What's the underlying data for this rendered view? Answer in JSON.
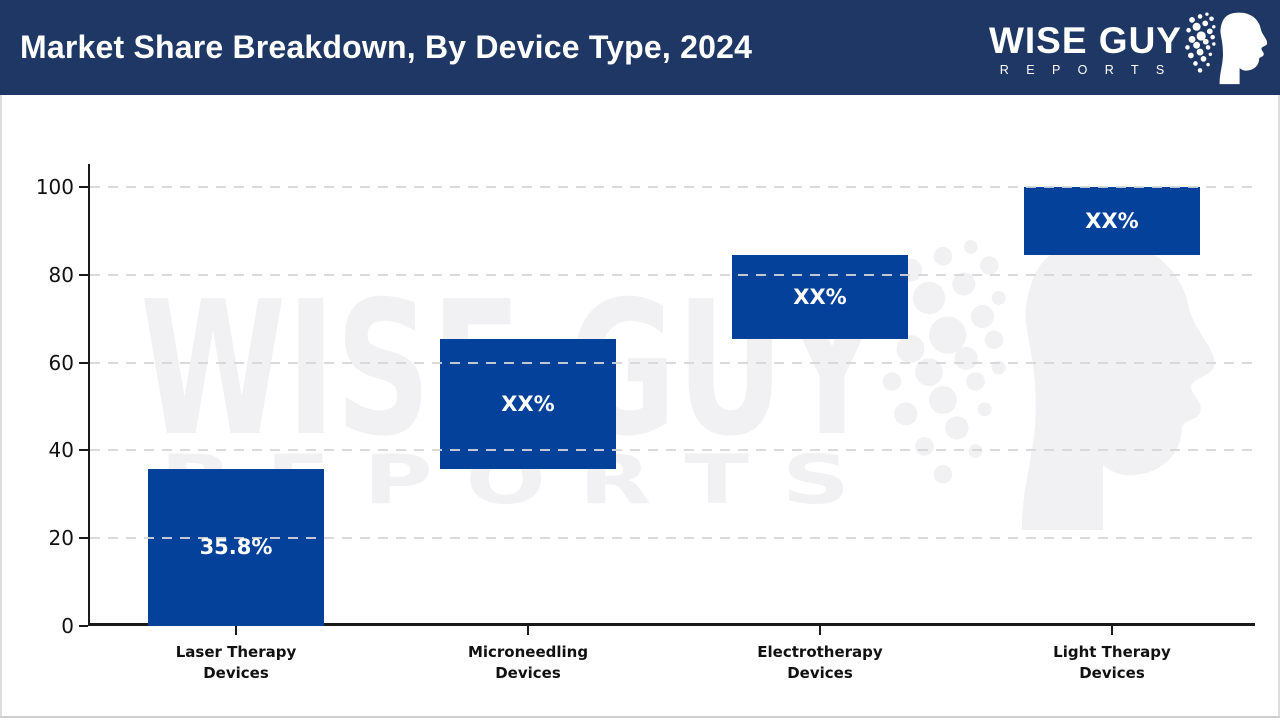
{
  "page": {
    "background": "#ffffff",
    "frame_color": "#cfcfcf"
  },
  "header": {
    "title": "Market Share Breakdown, By Device Type, 2024",
    "bg_color": "#1f3764",
    "logo": {
      "line1": "WISE GUY",
      "line2": "R E P O R T S",
      "face_icon": "face-profile-dots-icon",
      "color": "#ffffff"
    }
  },
  "watermark": {
    "line1": "WISE GUY",
    "line2": "R E P O R T S",
    "color": "#f1f1f3"
  },
  "chart_data": {
    "type": "bar",
    "subtype": "waterfall-floating-bars",
    "title": "Market Share Breakdown, By Device Type, 2024",
    "categories": [
      "Laser Therapy\nDevices",
      "Microneedling\nDevices",
      "Electrotherapy\nDevices",
      "Light Therapy\nDevices"
    ],
    "segments": [
      {
        "category": "Laser Therapy Devices",
        "start": 0,
        "end": 35.8,
        "label": "35.8%"
      },
      {
        "category": "Microneedling Devices",
        "start": 35.8,
        "end": 65.4,
        "label": "XX%"
      },
      {
        "category": "Electrotherapy Devices",
        "start": 65.4,
        "end": 84.5,
        "label": "XX%"
      },
      {
        "category": "Light Therapy Devices",
        "start": 84.5,
        "end": 100,
        "label": "XX%"
      }
    ],
    "bar_color": "#04419a",
    "bar_label_color": "#ffffff",
    "xlabel": "",
    "ylabel": "",
    "ylim": [
      0,
      100
    ],
    "yticks": [
      0,
      20,
      40,
      60,
      80,
      100
    ],
    "grid": "horizontal dashed, drawn above bars",
    "gridline_color": "#d6d6d6",
    "legend": "none"
  }
}
